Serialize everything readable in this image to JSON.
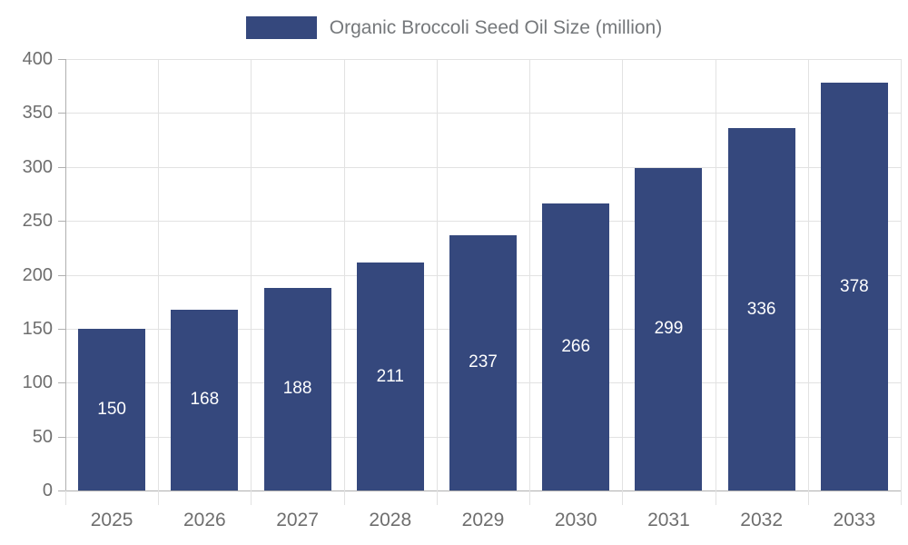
{
  "chart_data": {
    "type": "bar",
    "title": "Organic Broccoli Seed Oil Size (million)",
    "legend_entries": [
      "Organic Broccoli Seed Oil Size (million)"
    ],
    "legend_position": "top-center",
    "categories": [
      "2025",
      "2026",
      "2027",
      "2028",
      "2029",
      "2030",
      "2031",
      "2032",
      "2033"
    ],
    "series": [
      {
        "name": "Organic Broccoli Seed Oil Size (million)",
        "values": [
          150,
          168,
          188,
          211,
          237,
          266,
          299,
          336,
          378
        ]
      }
    ],
    "bar_value_labels": [
      "150",
      "168",
      "188",
      "211",
      "237",
      "266",
      "299",
      "336",
      "378"
    ],
    "xlabel": "",
    "ylabel": "",
    "ylim": [
      0,
      400
    ],
    "ytick_step": 50,
    "yticks": [
      0,
      50,
      100,
      150,
      200,
      250,
      300,
      350,
      400
    ],
    "ytick_labels": [
      "0",
      "50",
      "100",
      "150",
      "200",
      "250",
      "300",
      "350",
      "400"
    ],
    "grid": true,
    "colors": {
      "bar": "#35487d",
      "bar_label": "#ffffff",
      "grid": "#e2e2e2",
      "axis": "#b0b0b0",
      "tick_label": "#6e6e6e",
      "title": "#75787b",
      "background": "#ffffff"
    }
  }
}
